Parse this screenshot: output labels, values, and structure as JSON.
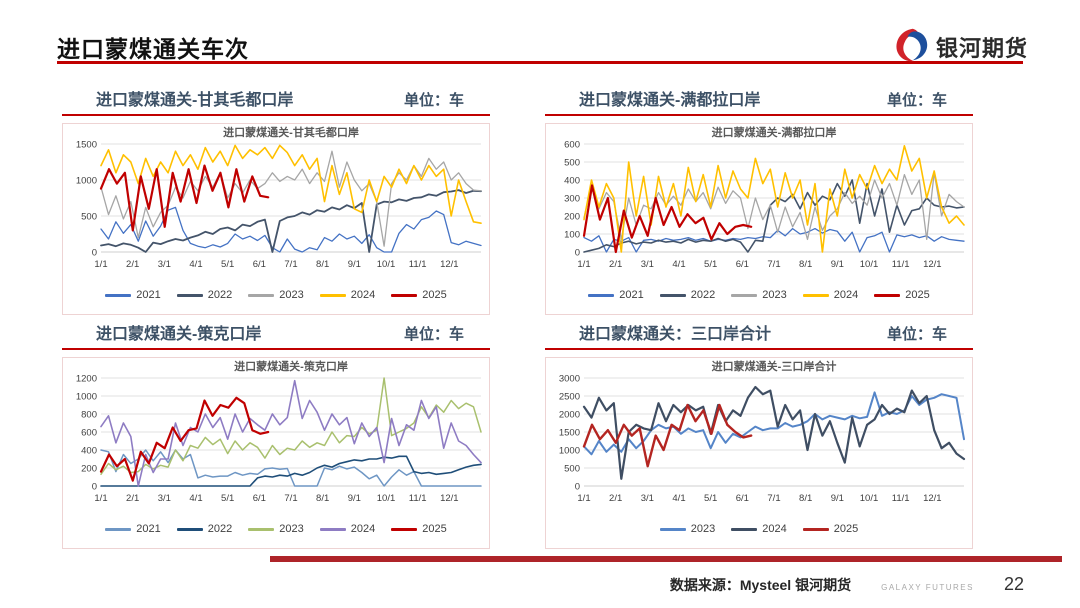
{
  "header": {
    "title": "进口蒙煤通关车次",
    "logo_text": "银河期货"
  },
  "footer": {
    "source_label": "数据来源：Mysteel 银河期货",
    "brand": "GALAXY FUTURES",
    "page_number": "22"
  },
  "colors": {
    "accent_red": "#C00000",
    "footer_bar_red": "#AE2429",
    "panel_title_navy": "#3D5166"
  },
  "chart_data": [
    {
      "type": "line",
      "panel_title": "进口蒙煤通关-甘其毛都口岸",
      "unit_label": "单位：车",
      "title": "进口蒙煤通关-甘其毛都口岸",
      "xlabel": "",
      "ylabel": "",
      "xticks": [
        "1/1",
        "2/1",
        "3/1",
        "4/1",
        "5/1",
        "6/1",
        "7/1",
        "8/1",
        "9/1",
        "10/1",
        "11/1",
        "12/1"
      ],
      "ylim": [
        0,
        1500
      ],
      "yticks": [
        0,
        500,
        1000,
        1500
      ],
      "grid": true,
      "legend_position": "bottom",
      "series": [
        {
          "name": "2021",
          "color": "#4472C4",
          "width": 1.3,
          "span": 1,
          "values": [
            320,
            180,
            420,
            260,
            380,
            150,
            430,
            220,
            360,
            580,
            620,
            300,
            120,
            80,
            60,
            100,
            70,
            120,
            250,
            180,
            220,
            160,
            230,
            60,
            0,
            180,
            40,
            0,
            60,
            30,
            200,
            150,
            250,
            180,
            220,
            120,
            240,
            60,
            0,
            0,
            260,
            380,
            320,
            450,
            480,
            570,
            520,
            130,
            100,
            150,
            120,
            90
          ]
        },
        {
          "name": "2022",
          "color": "#44546A",
          "width": 1.8,
          "span": 1,
          "values": [
            90,
            110,
            80,
            120,
            100,
            60,
            0,
            130,
            110,
            150,
            180,
            160,
            200,
            230,
            280,
            250,
            320,
            340,
            300,
            380,
            360,
            420,
            450,
            0,
            430,
            480,
            500,
            550,
            520,
            580,
            560,
            620,
            590,
            650,
            610,
            680,
            0,
            660,
            700,
            690,
            730,
            710,
            750,
            760,
            800,
            780,
            830,
            840,
            860,
            820,
            850,
            845
          ]
        },
        {
          "name": "2023",
          "color": "#A6A6A6",
          "width": 1.3,
          "span": 1,
          "values": [
            900,
            520,
            780,
            460,
            700,
            200,
            620,
            350,
            550,
            650,
            900,
            750,
            980,
            850,
            1050,
            900,
            1100,
            750,
            950,
            820,
            1000,
            880,
            950,
            1100,
            980,
            1050,
            1000,
            1150,
            950,
            1100,
            980,
            1400,
            900,
            1250,
            1000,
            850,
            950,
            700,
            80,
            950,
            1100,
            1000,
            1200,
            1050,
            1300,
            1150,
            1250,
            1000,
            1100,
            950,
            860,
            850
          ]
        },
        {
          "name": "2024",
          "color": "#FFC000",
          "width": 1.6,
          "span": 1,
          "values": [
            1200,
            1420,
            1100,
            1350,
            1250,
            950,
            1300,
            1050,
            1250,
            1100,
            1400,
            1200,
            1350,
            1150,
            1450,
            1250,
            1400,
            1200,
            1480,
            1300,
            1420,
            1350,
            1450,
            1300,
            1480,
            1380,
            1200,
            1350,
            1150,
            1300,
            700,
            1200,
            800,
            1100,
            600,
            550,
            1000,
            700,
            1050,
            900,
            1150,
            950,
            1200,
            1000,
            1200,
            1050,
            1150,
            500,
            1000,
            700,
            420,
            400
          ]
        },
        {
          "name": "2025",
          "color": "#C00000",
          "width": 2.2,
          "span": 0.44,
          "values": [
            880,
            1150,
            950,
            1100,
            300,
            1050,
            600,
            1150,
            350,
            1100,
            700,
            1150,
            680,
            1200,
            850,
            1100,
            620,
            1150,
            700,
            1050,
            780,
            760
          ]
        }
      ]
    },
    {
      "type": "line",
      "panel_title": "进口蒙煤通关-满都拉口岸",
      "unit_label": "单位：车",
      "title": "进口蒙煤通关-满都拉口岸",
      "xlabel": "",
      "ylabel": "",
      "xticks": [
        "1/1",
        "2/1",
        "3/1",
        "4/1",
        "5/1",
        "6/1",
        "7/1",
        "8/1",
        "9/1",
        "10/1",
        "11/1",
        "12/1"
      ],
      "ylim": [
        0,
        600
      ],
      "yticks": [
        0,
        100,
        200,
        300,
        400,
        500,
        600
      ],
      "grid": true,
      "legend_position": "bottom",
      "series": [
        {
          "name": "2021",
          "color": "#4472C4",
          "width": 1.3,
          "span": 1,
          "values": [
            80,
            60,
            90,
            0,
            70,
            60,
            80,
            0,
            65,
            70,
            60,
            75,
            65,
            70,
            80,
            65,
            75,
            60,
            70,
            65,
            75,
            70,
            80,
            75,
            85,
            80,
            120,
            90,
            130,
            100,
            110,
            130,
            105,
            125,
            115,
            60,
            110,
            0,
            80,
            90,
            110,
            0,
            95,
            85,
            95,
            80,
            90,
            60,
            85,
            70,
            65,
            60
          ]
        },
        {
          "name": "2022",
          "color": "#44546A",
          "width": 1.6,
          "span": 1,
          "values": [
            0,
            10,
            20,
            40,
            30,
            50,
            60,
            45,
            55,
            50,
            65,
            55,
            60,
            50,
            70,
            55,
            65,
            60,
            75,
            60,
            70,
            55,
            0,
            65,
            60,
            260,
            300,
            280,
            320,
            240,
            330,
            260,
            310,
            290,
            380,
            310,
            400,
            160,
            380,
            200,
            350,
            110,
            260,
            150,
            230,
            240,
            300,
            260,
            250,
            255,
            245,
            250
          ]
        },
        {
          "name": "2023",
          "color": "#A6A6A6",
          "width": 1.3,
          "span": 1,
          "values": [
            190,
            370,
            240,
            330,
            280,
            70,
            300,
            150,
            260,
            240,
            330,
            260,
            310,
            260,
            350,
            280,
            330,
            240,
            360,
            270,
            340,
            300,
            130,
            300,
            180,
            260,
            110,
            250,
            140,
            220,
            70,
            250,
            120,
            200,
            240,
            330,
            270,
            310,
            260,
            400,
            300,
            380,
            260,
            430,
            320,
            400,
            70,
            440,
            200,
            320,
            280,
            250
          ]
        },
        {
          "name": "2024",
          "color": "#FFC000",
          "width": 1.6,
          "span": 1,
          "values": [
            180,
            400,
            250,
            380,
            300,
            0,
            500,
            200,
            420,
            150,
            420,
            250,
            380,
            200,
            470,
            280,
            430,
            250,
            480,
            300,
            450,
            350,
            300,
            520,
            380,
            460,
            250,
            440,
            300,
            400,
            150,
            380,
            0,
            350,
            200,
            460,
            300,
            430,
            350,
            480,
            380,
            460,
            400,
            590,
            450,
            520,
            300,
            450,
            250,
            160,
            200,
            150
          ]
        },
        {
          "name": "2025",
          "color": "#C00000",
          "width": 2.2,
          "span": 0.44,
          "values": [
            90,
            370,
            180,
            300,
            0,
            230,
            80,
            200,
            90,
            300,
            150,
            250,
            140,
            210,
            160,
            190,
            70,
            160,
            100,
            140,
            150,
            140
          ]
        }
      ]
    },
    {
      "type": "line",
      "panel_title": "进口蒙煤通关-策克口岸",
      "unit_label": "单位：车",
      "title": "进口蒙煤通关-策克口岸",
      "xlabel": "",
      "ylabel": "",
      "xticks": [
        "1/1",
        "2/1",
        "3/1",
        "4/1",
        "5/1",
        "6/1",
        "7/1",
        "8/1",
        "9/1",
        "10/1",
        "11/1",
        "12/1"
      ],
      "ylim": [
        0,
        1200
      ],
      "yticks": [
        0,
        200,
        400,
        600,
        800,
        1000,
        1200
      ],
      "grid": true,
      "legend_position": "bottom",
      "series": [
        {
          "name": "2021",
          "color": "#6E96C4",
          "width": 1.5,
          "span": 1,
          "values": [
            400,
            380,
            160,
            350,
            250,
            300,
            400,
            280,
            380,
            260,
            400,
            300,
            350,
            90,
            120,
            100,
            110,
            110,
            150,
            120,
            140,
            130,
            190,
            200,
            185,
            195,
            0,
            0,
            0,
            0,
            200,
            180,
            220,
            190,
            210,
            150,
            80,
            120,
            0,
            100,
            180,
            120,
            160,
            0,
            0,
            0,
            0,
            0,
            0,
            0,
            0,
            0
          ]
        },
        {
          "name": "2022",
          "color": "#1F4E79",
          "width": 1.6,
          "span": 1,
          "values": [
            0,
            0,
            0,
            0,
            0,
            0,
            0,
            0,
            0,
            0,
            0,
            0,
            0,
            0,
            0,
            0,
            0,
            0,
            0,
            0,
            0,
            90,
            110,
            100,
            120,
            110,
            140,
            120,
            150,
            200,
            230,
            210,
            250,
            270,
            290,
            280,
            300,
            300,
            320,
            310,
            330,
            330,
            160,
            140,
            150,
            130,
            140,
            150,
            180,
            210,
            230,
            240
          ]
        },
        {
          "name": "2023",
          "color": "#A9C06E",
          "width": 1.5,
          "span": 1,
          "values": [
            130,
            250,
            180,
            220,
            150,
            160,
            240,
            190,
            230,
            210,
            400,
            280,
            450,
            420,
            540,
            460,
            520,
            360,
            500,
            400,
            480,
            430,
            310,
            450,
            350,
            420,
            400,
            500,
            430,
            480,
            450,
            600,
            480,
            560,
            550,
            650,
            580,
            620,
            1200,
            560,
            600,
            640,
            700,
            880,
            760,
            900,
            820,
            950,
            860,
            920,
            880,
            600
          ]
        },
        {
          "name": "2024",
          "color": "#8E7CC3",
          "width": 1.6,
          "span": 1,
          "values": [
            660,
            780,
            480,
            700,
            550,
            0,
            350,
            150,
            300,
            300,
            700,
            450,
            650,
            600,
            800,
            650,
            760,
            520,
            800,
            600,
            750,
            680,
            620,
            800,
            680,
            760,
            1170,
            750,
            950,
            820,
            620,
            800,
            680,
            760,
            470,
            700,
            550,
            650,
            260,
            750,
            450,
            680,
            620,
            950,
            750,
            880,
            420,
            700,
            500,
            450,
            350,
            260
          ]
        },
        {
          "name": "2025",
          "color": "#C00000",
          "width": 2.2,
          "span": 0.44,
          "values": [
            160,
            350,
            220,
            300,
            60,
            380,
            250,
            480,
            420,
            650,
            500,
            620,
            640,
            950,
            780,
            900,
            870,
            980,
            920,
            620,
            580,
            600
          ]
        }
      ]
    },
    {
      "type": "line",
      "panel_title": "进口蒙煤通关：三口岸合计",
      "unit_label": "单位：车",
      "title": "进口蒙煤通关-三口岸合计",
      "xlabel": "",
      "ylabel": "",
      "xticks": [
        "1/1",
        "2/1",
        "3/1",
        "4/1",
        "5/1",
        "6/1",
        "7/1",
        "8/1",
        "9/1",
        "10/1",
        "11/1",
        "12/1"
      ],
      "ylim": [
        0,
        3000
      ],
      "yticks": [
        0,
        500,
        1000,
        1500,
        2000,
        2500,
        3000
      ],
      "grid": true,
      "legend_position": "bottom",
      "series": [
        {
          "name": "2023",
          "color": "#5585C8",
          "width": 2,
          "span": 1,
          "values": [
            1100,
            880,
            1250,
            950,
            1150,
            950,
            1300,
            1050,
            1250,
            1550,
            1700,
            1600,
            1650,
            1450,
            1600,
            1500,
            1550,
            1050,
            1500,
            1200,
            1450,
            1350,
            1500,
            1650,
            1550,
            1600,
            1600,
            1750,
            1650,
            1700,
            1800,
            2000,
            1850,
            1950,
            1900,
            1850,
            1950,
            1880,
            1920,
            2600,
            1950,
            2050,
            2000,
            2100,
            2500,
            2250,
            2400,
            2450,
            2550,
            2500,
            2450,
            1300
          ]
        },
        {
          "name": "2024",
          "color": "#3F4E63",
          "width": 2.2,
          "span": 1,
          "values": [
            2200,
            1900,
            2450,
            2100,
            2300,
            200,
            1500,
            1700,
            1600,
            1550,
            2300,
            1800,
            2250,
            2050,
            2250,
            2100,
            2200,
            1450,
            2250,
            1800,
            2100,
            1950,
            2450,
            2750,
            2550,
            2650,
            1650,
            2250,
            1850,
            2100,
            1000,
            2000,
            1400,
            1800,
            1200,
            650,
            1900,
            1100,
            1700,
            1850,
            2250,
            2000,
            2150,
            2050,
            2650,
            2300,
            2500,
            1550,
            1050,
            1200,
            900,
            750
          ]
        },
        {
          "name": "2025",
          "color": "#B42521",
          "width": 2.4,
          "span": 0.44,
          "values": [
            1100,
            1700,
            1300,
            1550,
            1200,
            1700,
            1400,
            1600,
            550,
            1400,
            1000,
            1700,
            1550,
            2250,
            1800,
            2100,
            1450,
            2250,
            1700,
            1500,
            1350,
            1400
          ]
        }
      ]
    }
  ]
}
